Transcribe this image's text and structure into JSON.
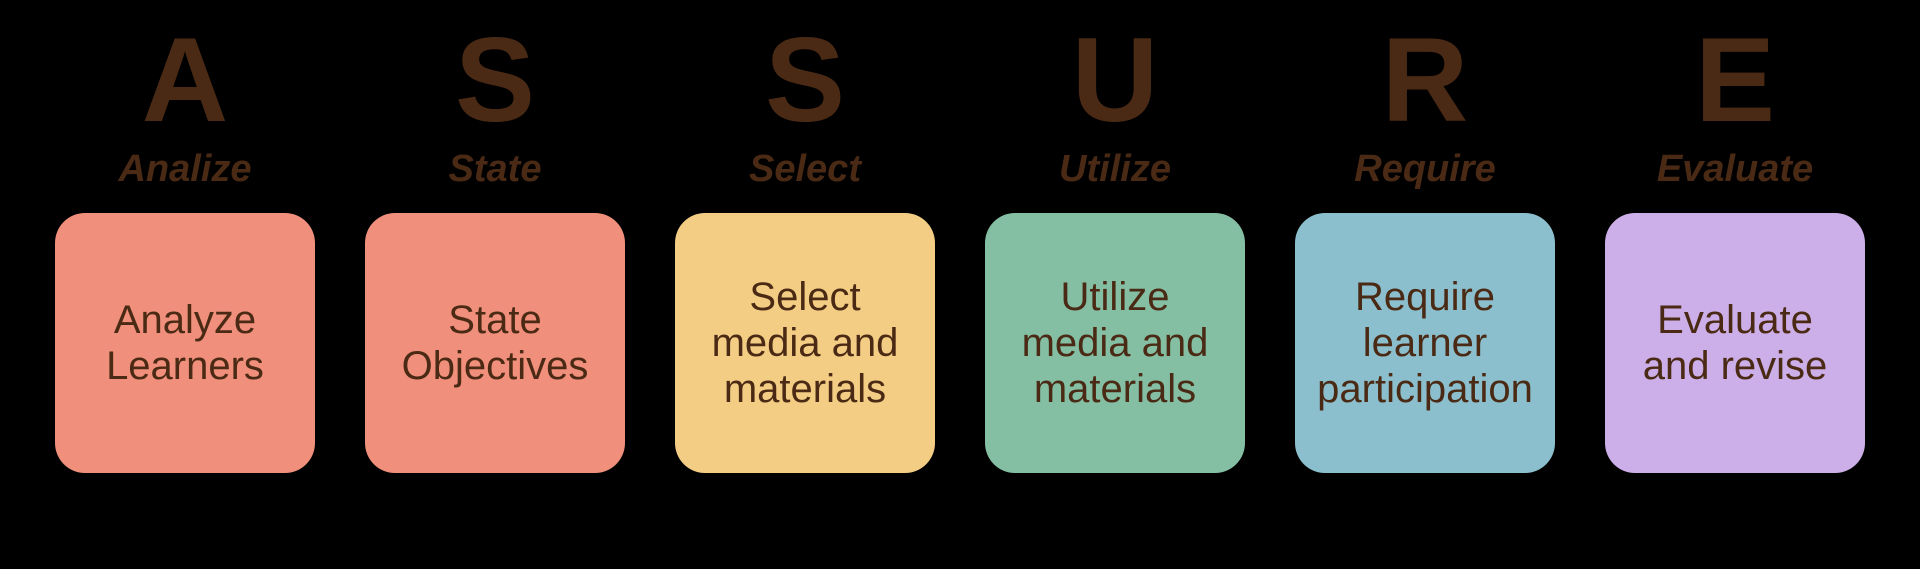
{
  "type": "infographic",
  "background_color": "#000000",
  "heading_text_color": "#4a2a14",
  "card_text_color": "#4a2a14",
  "letter_fontsize": 120,
  "keyword_fontsize": 38,
  "card_text_fontsize": 40,
  "card_border_radius": 30,
  "card_size": 260,
  "gap": 50,
  "items": [
    {
      "letter": "A",
      "keyword": "Analize",
      "description": "Analyze Learners",
      "card_color": "#f08f7b"
    },
    {
      "letter": "S",
      "keyword": "State",
      "description": "State Objectives",
      "card_color": "#f08f7b"
    },
    {
      "letter": "S",
      "keyword": "Select",
      "description": "Select media and materials",
      "card_color": "#f4cd85"
    },
    {
      "letter": "U",
      "keyword": "Utilize",
      "description": "Utilize media and materials",
      "card_color": "#84bfa4"
    },
    {
      "letter": "R",
      "keyword": "Require",
      "description": "Require learner participation",
      "card_color": "#8cbfcd"
    },
    {
      "letter": "E",
      "keyword": "Evaluate",
      "description": "Evaluate and revise",
      "card_color": "#ccafe8"
    }
  ]
}
